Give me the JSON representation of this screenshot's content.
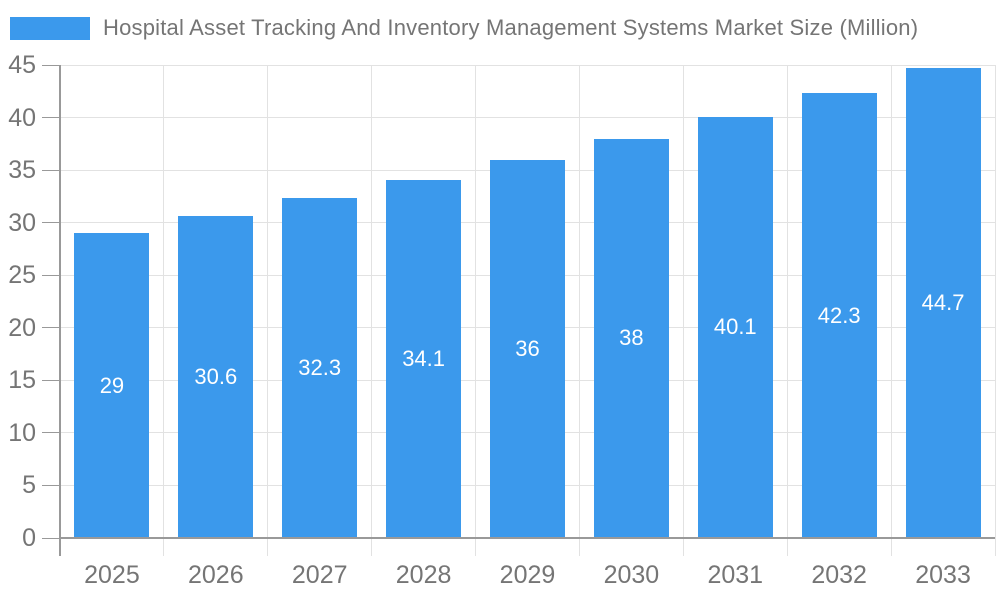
{
  "chart_data": {
    "type": "bar",
    "title": "Hospital Asset Tracking And Inventory Management Systems Market Size (Million)",
    "legend": {
      "label": "Hospital Asset Tracking And Inventory Management Systems Market Size (Million)"
    },
    "categories": [
      "2025",
      "2026",
      "2027",
      "2028",
      "2029",
      "2030",
      "2031",
      "2032",
      "2033"
    ],
    "values": [
      29,
      30.6,
      32.3,
      34.1,
      36,
      38,
      40.1,
      42.3,
      44.7
    ],
    "value_labels": [
      "29",
      "30.6",
      "32.3",
      "34.1",
      "36",
      "38",
      "40.1",
      "42.3",
      "44.7"
    ],
    "xlabel": "",
    "ylabel": "",
    "ylim": [
      0,
      45
    ],
    "yticks": [
      0,
      5,
      10,
      15,
      20,
      25,
      30,
      35,
      40,
      45
    ],
    "grid": true,
    "legend_position": "top-left",
    "colors": {
      "bar": "#3B99EC",
      "bar_label_text": "#ffffff",
      "axis_text": "#757575",
      "grid_line": "#E2E2E2",
      "axis_line": "#999999",
      "background": "#ffffff"
    }
  }
}
